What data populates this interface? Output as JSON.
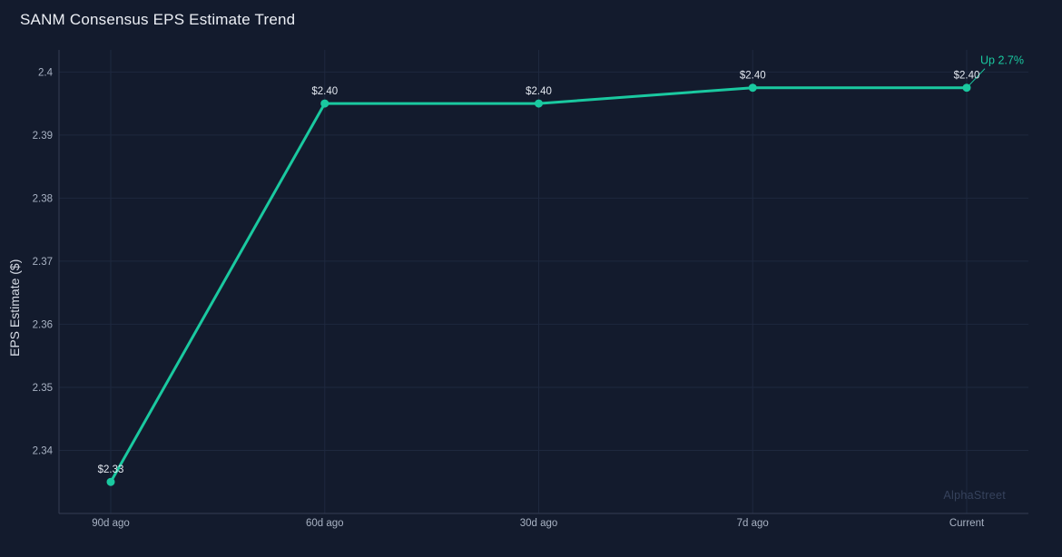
{
  "watermark": "AlphaStreet",
  "colors": {
    "background": "#131b2d",
    "line": "#1ac9a0",
    "marker": "#1ac9a0",
    "grid": "#1e283e",
    "axis": "#343e54",
    "title_text": "#eceff5",
    "axis_title_text": "#d7dce6",
    "tick_text": "#a8b2c3",
    "label_text": "#e3e8f0",
    "annotation_text": "#1ac9a0",
    "watermark_text": "#36425c"
  },
  "chart_data": {
    "type": "line",
    "title": "SANM Consensus EPS Estimate Trend",
    "xlabel": "",
    "ylabel": "EPS Estimate ($)",
    "categories": [
      "90d ago",
      "60d ago",
      "30d ago",
      "7d ago",
      "Current"
    ],
    "values": [
      2.335,
      2.395,
      2.395,
      2.3975,
      2.3975
    ],
    "point_labels": [
      "$2.33",
      "$2.40",
      "$2.40",
      "$2.40",
      "$2.40"
    ],
    "yticks": [
      2.34,
      2.35,
      2.36,
      2.37,
      2.38,
      2.39,
      2.4
    ],
    "ytick_labels": [
      "2.34",
      "2.35",
      "2.36",
      "2.37",
      "2.38",
      "2.39",
      "2.4"
    ],
    "ylim": [
      2.33,
      2.4035
    ],
    "grid": true,
    "legend": false,
    "annotation": {
      "text": "Up 2.7%",
      "target_index": 4
    }
  }
}
